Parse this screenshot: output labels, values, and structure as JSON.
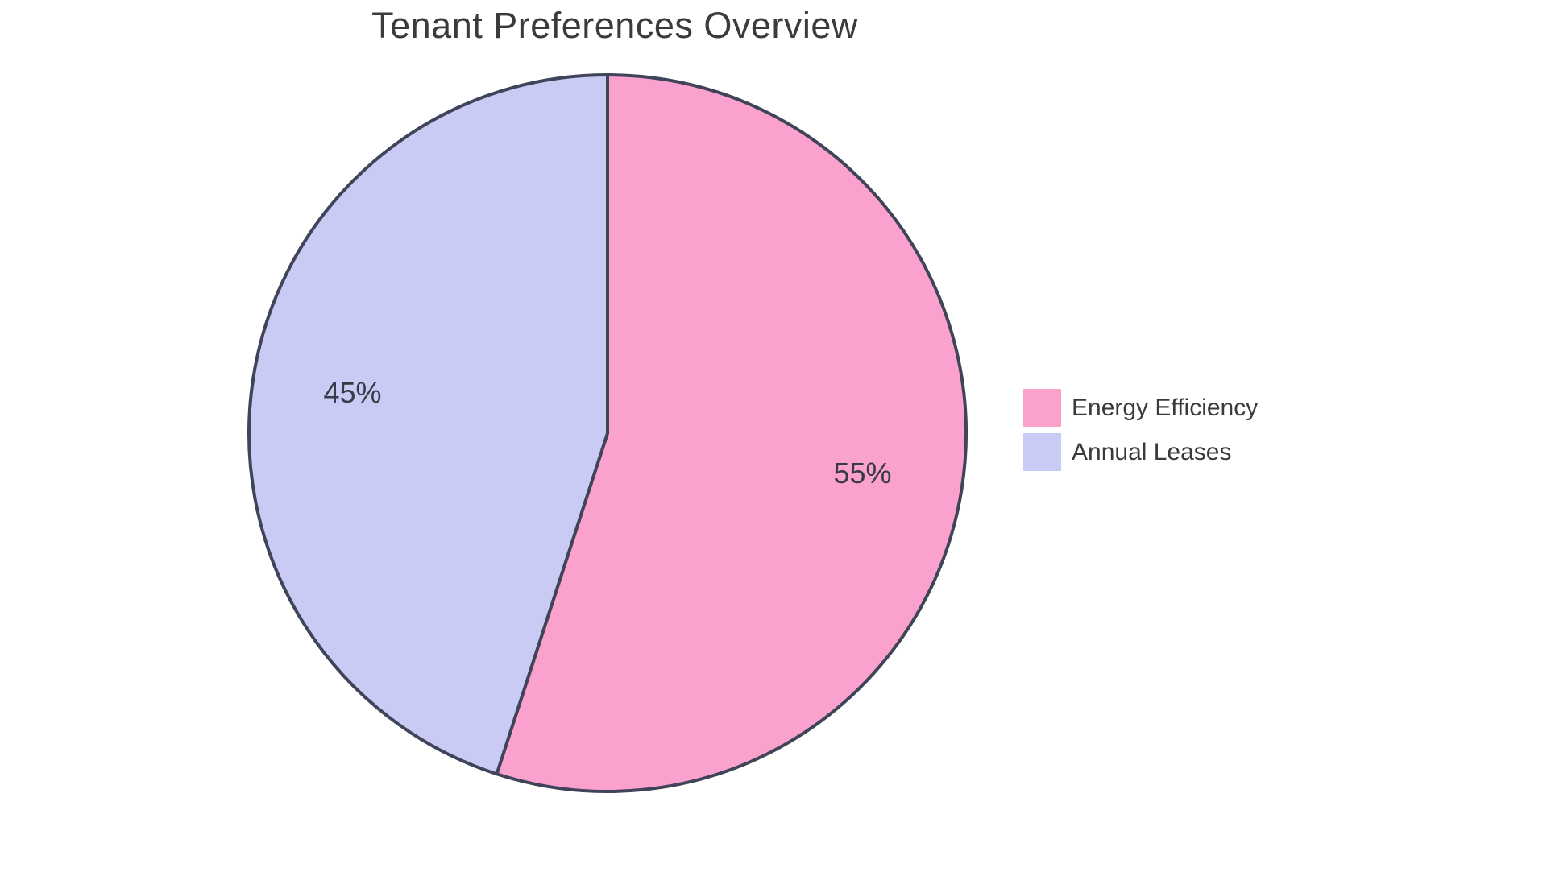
{
  "chart_data": {
    "type": "pie",
    "title": "Tenant Preferences Overview",
    "labels": [
      "Energy Efficiency",
      "Annual Leases"
    ],
    "values": [
      55,
      45
    ],
    "value_unit": "%",
    "slice_label_texts": [
      "55%",
      "45%"
    ],
    "slice_ids": [
      "energy-efficiency",
      "annual-leases"
    ],
    "colors": [
      "#FAA1CD",
      "#C9CBF4"
    ],
    "stroke_color": "#3F4458",
    "title_color": "#3B3B3B",
    "slice_label_color": "#363B47",
    "legend_text_color": "#3A3A3A",
    "background_color": "#FFFFFF",
    "start_angle_deg": 0,
    "direction": "clockwise",
    "legend_position": "right",
    "grid": false
  }
}
